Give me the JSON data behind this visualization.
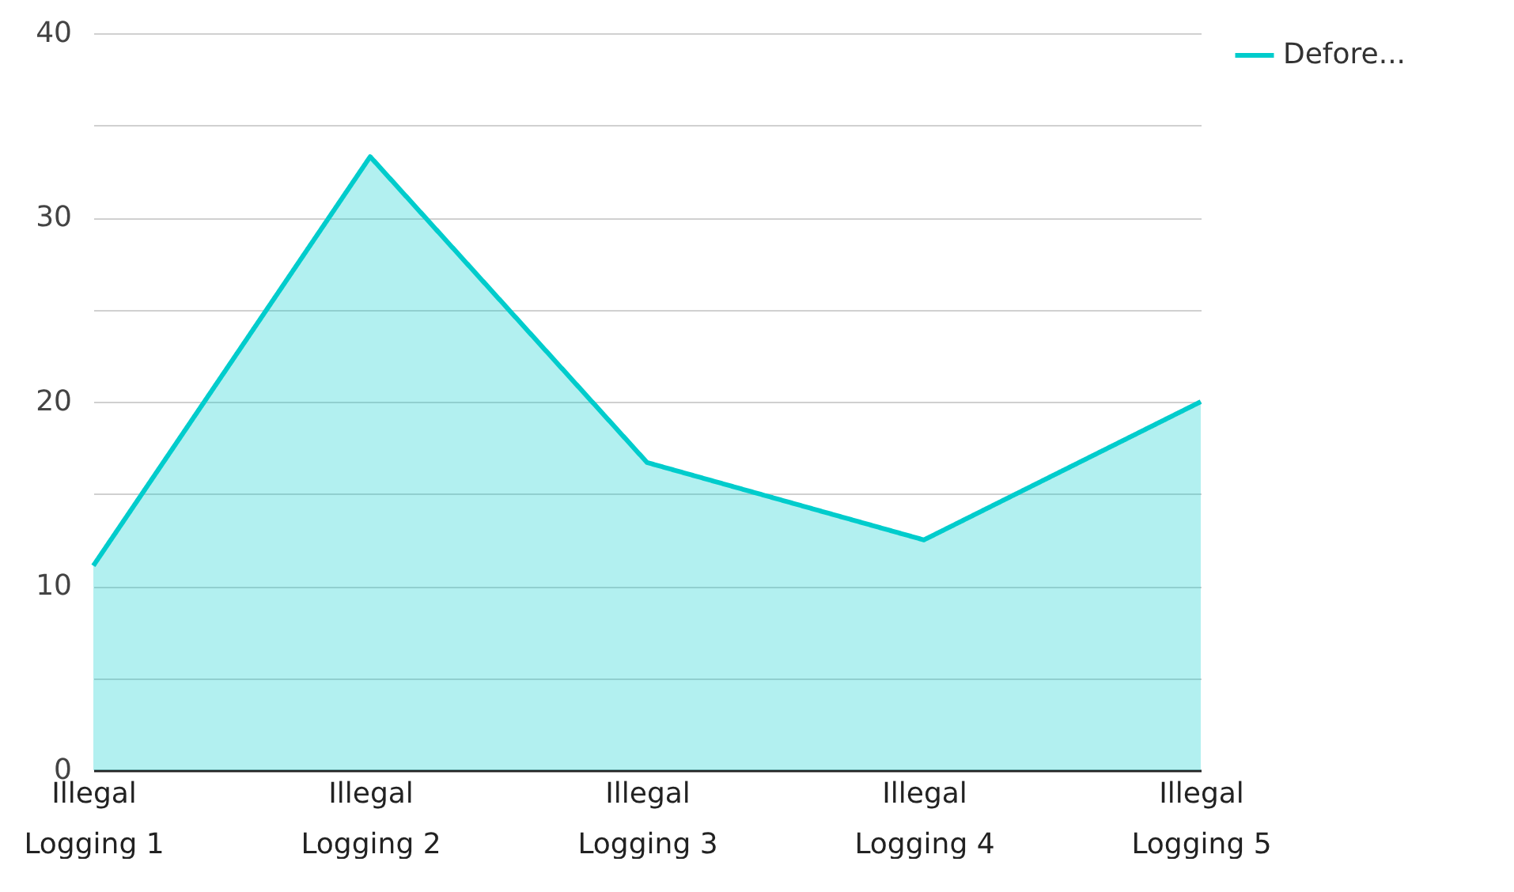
{
  "chart_data": {
    "type": "area",
    "categories": [
      "Illegal Logging 1",
      "Illegal Logging 2",
      "Illegal Logging 3",
      "Illegal Logging 4",
      "Illegal Logging 5"
    ],
    "series": [
      {
        "name": "Defore...",
        "color": "#00cccc",
        "values": [
          11.1,
          33.3,
          16.7,
          12.5,
          20.0
        ]
      }
    ],
    "ylim": [
      0,
      40
    ],
    "yticks": [
      0,
      {
        "value": 5,
        "label": null
      },
      10,
      {
        "value": 15,
        "label": null
      },
      20,
      {
        "value": 25,
        "label": null
      },
      30,
      {
        "value": 35,
        "label": null
      },
      40
    ],
    "grid": "y",
    "legend": "top right",
    "line_style": "solid",
    "marker": "none"
  }
}
